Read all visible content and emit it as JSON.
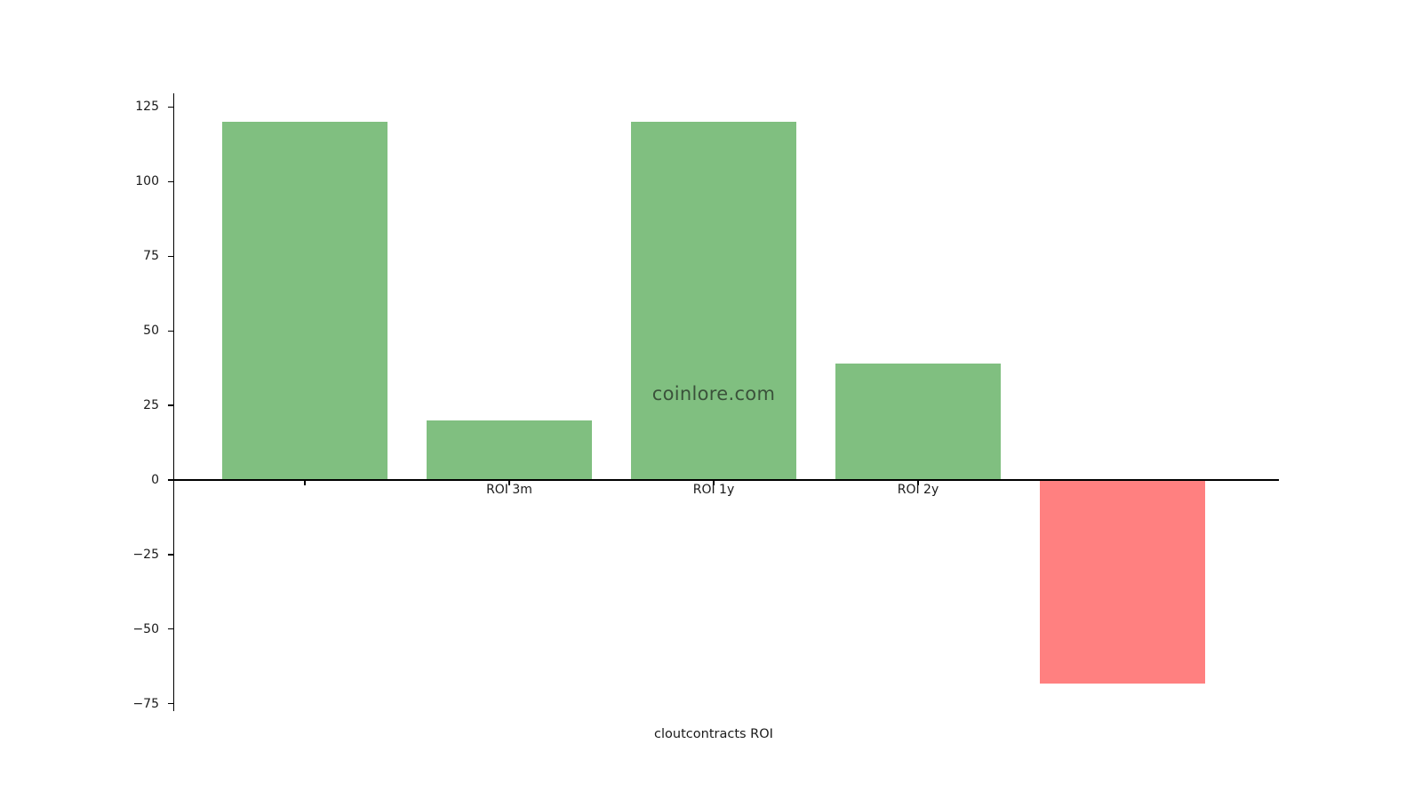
{
  "chart_data": {
    "type": "bar",
    "title": "",
    "xlabel": "cloutcontracts ROI",
    "ylabel": "",
    "watermark": "coinlore.com",
    "categories": [
      "",
      "ROI 3m",
      "ROI 1y",
      "ROI 2y",
      ""
    ],
    "values": [
      120,
      20,
      120,
      39,
      -68
    ],
    "bar_colors": [
      "#80bf80",
      "#80bf80",
      "#80bf80",
      "#80bf80",
      "#ff8080"
    ],
    "positive_color": "#80bf80",
    "negative_color": "#ff8080",
    "y_ticks": [
      125,
      100,
      75,
      50,
      25,
      0,
      -25,
      -50,
      -75
    ],
    "y_tick_labels": [
      "125",
      "100",
      "75",
      "50",
      "25",
      "0",
      "−25",
      "−50",
      "−75"
    ],
    "ylim": [
      -77.5,
      129.5
    ],
    "grid": false,
    "legend_position": "none",
    "axis_color": "#000000",
    "tick_label_color": "#1a1a1a",
    "background_color": "#ffffff"
  }
}
